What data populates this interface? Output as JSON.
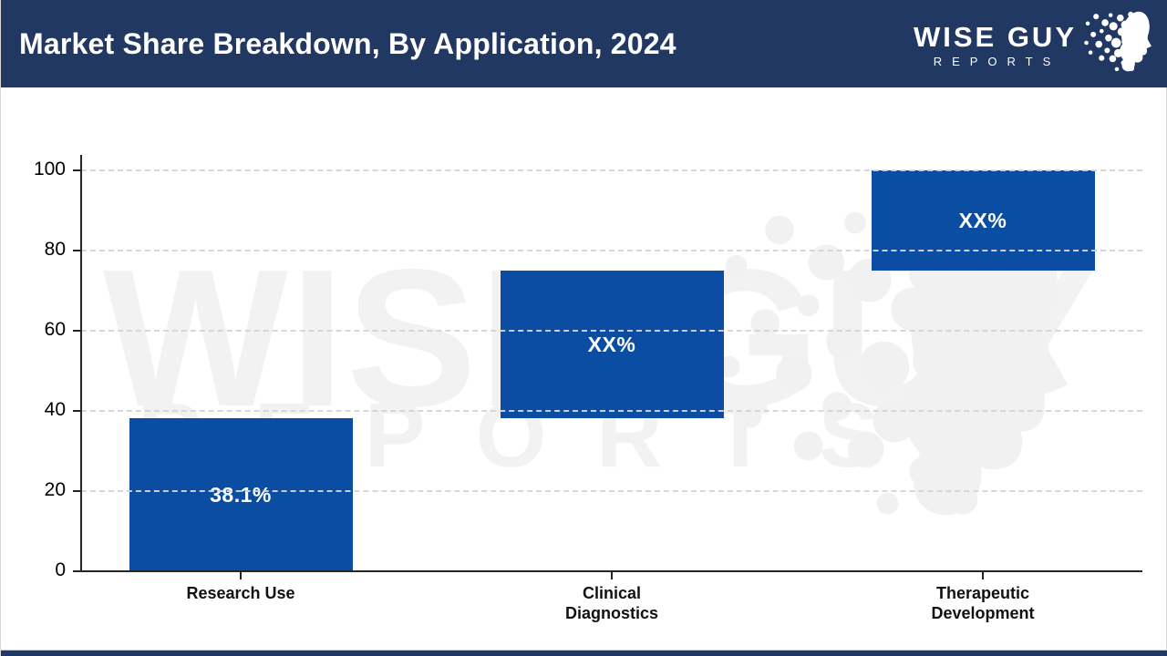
{
  "header": {
    "title": "Market Share Breakdown, By Application, 2024",
    "brand_line1": "WISE GUY",
    "brand_line2": "REPORTS",
    "bg_color": "#213863"
  },
  "watermark": {
    "line1": "WISE GUY",
    "line2": "REPORTS"
  },
  "chart_data": {
    "type": "bar",
    "variant": "floating-segment-breakdown",
    "title": "Market Share Breakdown, By Application, 2024",
    "categories": [
      "Research Use",
      "Clinical Diagnostics",
      "Therapeutic Development"
    ],
    "category_label_lines": [
      [
        "Research Use"
      ],
      [
        "Clinical",
        "Diagnostics"
      ],
      [
        "Therapeutic",
        "Development"
      ]
    ],
    "bars": [
      {
        "category": "Research Use",
        "start": 0,
        "end": 38.1,
        "label": "38.1%"
      },
      {
        "category": "Clinical Diagnostics",
        "start": 38.1,
        "end": 75,
        "label": "XX%"
      },
      {
        "category": "Therapeutic Development",
        "start": 75,
        "end": 100,
        "label": "XX%"
      }
    ],
    "yticks": [
      0,
      20,
      40,
      60,
      80,
      100
    ],
    "ylim": [
      0,
      104
    ],
    "xlabel": "",
    "ylabel": "",
    "legend": "none",
    "grid": "horizontal-dashed",
    "bar_color": "#0b4da2",
    "grid_color": "#d5d5d5",
    "axis_color": "#262626"
  }
}
